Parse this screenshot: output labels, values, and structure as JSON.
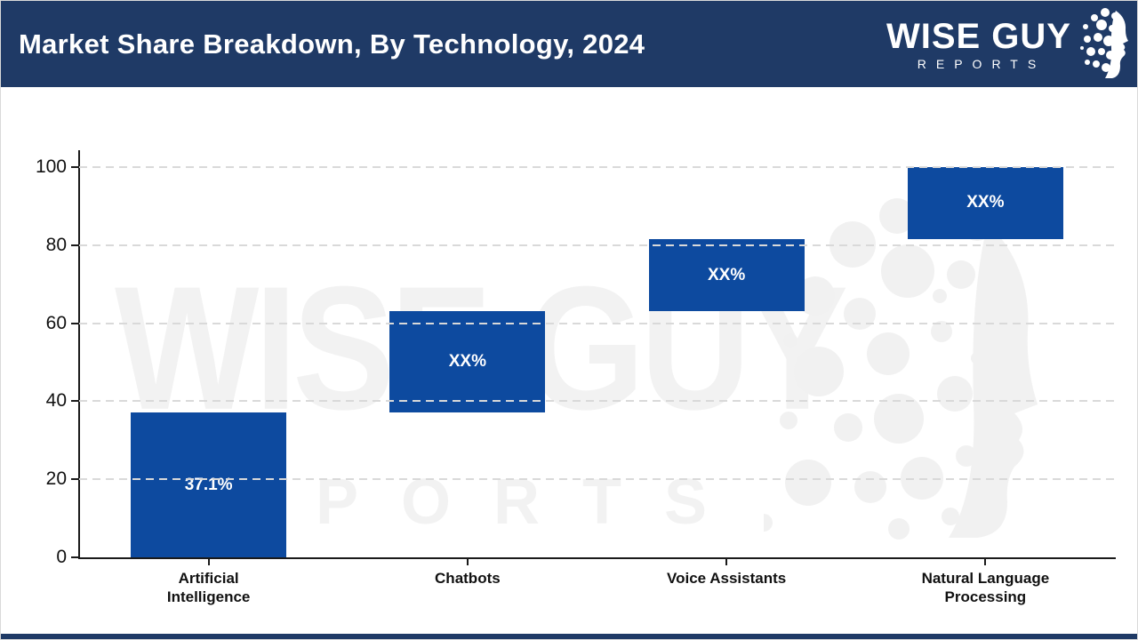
{
  "header": {
    "title": "Market Share Breakdown, By Technology, 2024",
    "logo": {
      "line1": "WISE GUY",
      "line2": "REPORTS"
    }
  },
  "watermark": {
    "line1": "WISE GUY",
    "line2": "REPORTS"
  },
  "colors": {
    "header_bg": "#1f3a66",
    "bar": "#0d4a9f",
    "grid": "#d9d9d9",
    "axis": "#1a1a1a",
    "bar_label_text": "#ffffff",
    "watermark": "#f2f2f2"
  },
  "chart_data": {
    "type": "bar",
    "subtype": "floating-waterfall",
    "title": "Market Share Breakdown, By Technology, 2024",
    "categories": [
      [
        "Artificial",
        "Intelligence"
      ],
      [
        "Chatbots"
      ],
      [
        "Voice Assistants"
      ],
      [
        "Natural Language",
        "Processing"
      ]
    ],
    "series": [
      {
        "name": "Market share (%)",
        "segments": [
          {
            "category": "Artificial Intelligence",
            "start": 0,
            "end": 37.1,
            "label": "37.1%"
          },
          {
            "category": "Chatbots",
            "start": 37.1,
            "end": 63.0,
            "label": "XX%"
          },
          {
            "category": "Voice Assistants",
            "start": 63.0,
            "end": 81.6,
            "label": "XX%"
          },
          {
            "category": "Natural Language Processing",
            "start": 81.6,
            "end": 100.0,
            "label": "XX%"
          }
        ]
      }
    ],
    "xlabel": "",
    "ylabel": "",
    "ylim": [
      0,
      105
    ],
    "yticks": [
      0,
      20,
      40,
      60,
      80,
      100
    ],
    "grid": "horizontal-dashed-on-top",
    "legend": "none"
  }
}
